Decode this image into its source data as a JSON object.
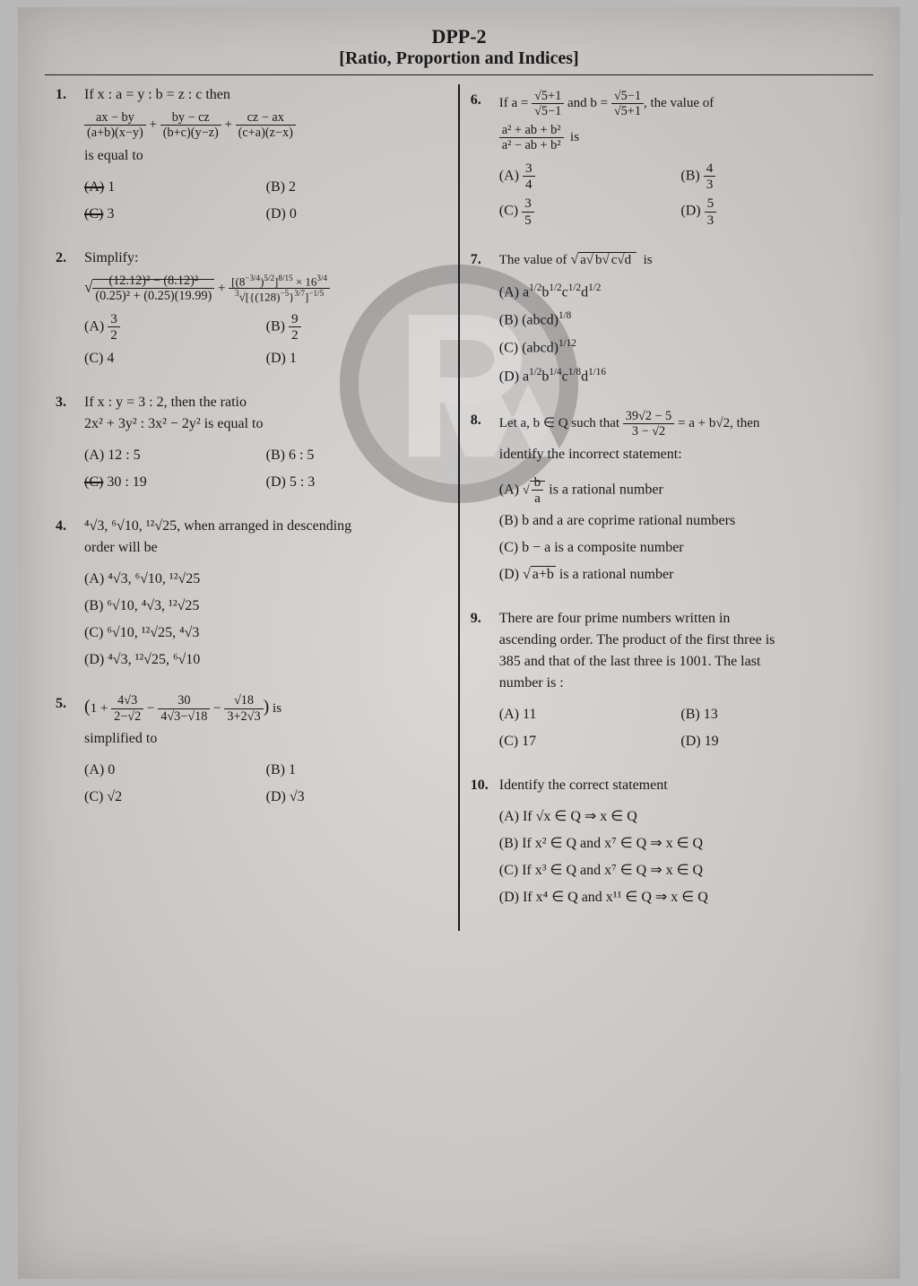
{
  "header": {
    "dpp": "DPP-2",
    "subtitle": "[Ratio, Proportion and Indices]"
  },
  "questions_left": [
    {
      "num": "1.",
      "text_lines": [
        "If x : a = y : b = z : c then"
      ],
      "formula_html": "<span class='frac'><span class='num'>ax − by</span><span class='den'>(a+b)(x−y)</span></span> + <span class='frac'><span class='num'>by − cz</span><span class='den'>(b+c)(y−z)</span></span> + <span class='frac'><span class='num'>cz − ax</span><span class='den'>(c+a)(z−x)</span></span>",
      "tail": "is equal to",
      "options": [
        {
          "label": "(A)",
          "text": "1",
          "struck": true
        },
        {
          "label": "(B)",
          "text": "2"
        },
        {
          "label": "(C)",
          "text": "3",
          "struck": true
        },
        {
          "label": "(D)",
          "text": "0"
        }
      ]
    },
    {
      "num": "2.",
      "text_lines": [
        "Simplify:"
      ],
      "formula_html": "<span style='font-size:17px'>√</span><span style='border-top:1px solid #1a1a1a; padding-top:1px'><span class='frac'><span class='num'>(12.12)² − (8.12)²</span><span class='den'>(0.25)² + (0.25)(19.99)</span></span></span> + <span class='frac' style='font-size:13px'><span class='num'>[(8<sup>−3/4</sup>)<sup>5/2</sup>]<sup>8/15</sup> × 16<sup>3/4</sup></span><span class='den'><sup>3</sup>√[{(128)<sup>−5</sup>}<sup>3/7</sup>]<sup>−1/5</sup></span></span>",
      "options": [
        {
          "label": "(A)",
          "html": "<span class='frac'><span class='num'>3</span><span class='den'>2</span></span>"
        },
        {
          "label": "(B)",
          "html": "<span class='frac'><span class='num'>9</span><span class='den'>2</span></span>"
        },
        {
          "label": "(C)",
          "text": "4"
        },
        {
          "label": "(D)",
          "text": "1"
        }
      ]
    },
    {
      "num": "3.",
      "text_lines": [
        "If x : y = 3 : 2, then the ratio",
        "2x² + 3y² : 3x² − 2y² is equal to"
      ],
      "options": [
        {
          "label": "(A)",
          "text": "12 : 5"
        },
        {
          "label": "(B)",
          "text": "6 : 5"
        },
        {
          "label": "(C)",
          "text": "30 : 19",
          "struck": true
        },
        {
          "label": "(D)",
          "text": "5 : 3"
        }
      ]
    },
    {
      "num": "4.",
      "text_lines": [
        "⁴√3, ⁶√10, ¹²√25, when arranged in descending",
        "order will be"
      ],
      "options_full": [
        {
          "label": "(A)",
          "text": "⁴√3, ⁶√10, ¹²√25"
        },
        {
          "label": "(B)",
          "text": "⁶√10, ⁴√3, ¹²√25"
        },
        {
          "label": "(C)",
          "text": "⁶√10, ¹²√25, ⁴√3"
        },
        {
          "label": "(D)",
          "text": "⁴√3, ¹²√25, ⁶√10"
        }
      ]
    },
    {
      "num": "5.",
      "formula_html": "<span style='font-size:20px'>(</span>1 + <span class='frac'><span class='num'>4√3</span><span class='den'>2−√2</span></span> − <span class='frac'><span class='num'>30</span><span class='den'>4√3−√18</span></span> − <span class='frac'><span class='num'>√18</span><span class='den'>3+2√3</span></span><span style='font-size:20px'>)</span> is",
      "tail": "simplified to",
      "options": [
        {
          "label": "(A)",
          "text": "0"
        },
        {
          "label": "(B)",
          "text": "1"
        },
        {
          "label": "(C)",
          "text": "√2"
        },
        {
          "label": "(D)",
          "text": "√3"
        }
      ]
    }
  ],
  "questions_right": [
    {
      "num": "6.",
      "formula_html": "If a = <span class='frac'><span class='num'>√5+1</span><span class='den'>√5−1</span></span> and b = <span class='frac'><span class='num'>√5−1</span><span class='den'>√5+1</span></span>, the value of",
      "formula2_html": "<span class='frac'><span class='num'>a² + ab + b²</span><span class='den'>a² − ab + b²</span></span> &nbsp;is",
      "options": [
        {
          "label": "(A)",
          "html": "<span class='frac'><span class='num'>3</span><span class='den'>4</span></span>"
        },
        {
          "label": "(B)",
          "html": "<span class='frac'><span class='num'>4</span><span class='den'>3</span></span>"
        },
        {
          "label": "(C)",
          "html": "<span class='frac'><span class='num'>3</span><span class='den'>5</span></span>"
        },
        {
          "label": "(D)",
          "html": "<span class='frac'><span class='num'>5</span><span class='den'>3</span></span>"
        }
      ]
    },
    {
      "num": "7.",
      "formula_html": "The value of <span style='font-size:16px'>√</span><span style='border-top:1px solid #1a1a1a;padding:0 2px;'>a√<span style='border-top:1px solid #1a1a1a;padding:0 2px;'>b√<span style='border-top:1px solid #1a1a1a;padding:0 2px;'>c√d</span></span></span> &nbsp;is",
      "options_full": [
        {
          "label": "(A)",
          "html": "a<sup>1/2</sup>b<sup>1/2</sup>c<sup>1/2</sup>d<sup>1/2</sup>"
        },
        {
          "label": "(B)",
          "html": "(abcd)<sup>1/8</sup>"
        },
        {
          "label": "(C)",
          "html": "(abcd)<sup>1/12</sup>"
        },
        {
          "label": "(D)",
          "html": "a<sup>1/2</sup>b<sup>1/4</sup>c<sup>1/8</sup>d<sup>1/16</sup>"
        }
      ]
    },
    {
      "num": "8.",
      "formula_html": "Let a, b ∈ Q such that <span class='frac'><span class='num'>39√2 − 5</span><span class='den'>3 − √2</span></span> = a + b√2, then",
      "tail": "identify the incorrect statement:",
      "options_full": [
        {
          "label": "(A)",
          "html": "<span style='font-size:14px'>√</span><span style='border-top:1px solid #1a1a1a;padding:0 2px;'><span class='frac'><span class='num'>b</span><span class='den'>a</span></span></span> is a rational number"
        },
        {
          "label": "(B)",
          "text": "b and a are coprime rational numbers"
        },
        {
          "label": "(C)",
          "text": "b − a is a composite number"
        },
        {
          "label": "(D)",
          "html": "√<span style='border-top:1px solid #1a1a1a;padding:0 2px;'>a+b</span> is a rational number"
        }
      ]
    },
    {
      "num": "9.",
      "text_lines": [
        "There are four prime numbers written in",
        "ascending order. The product of the first three is",
        "385 and that of the last three is 1001. The last",
        "number is :"
      ],
      "options": [
        {
          "label": "(A)",
          "text": "11"
        },
        {
          "label": "(B)",
          "text": "13"
        },
        {
          "label": "(C)",
          "text": "17"
        },
        {
          "label": "(D)",
          "text": "19"
        }
      ]
    },
    {
      "num": "10.",
      "text_lines": [
        "Identify the correct statement"
      ],
      "options_full": [
        {
          "label": "(A)",
          "html": "If √x ∈ Q ⇒ x ∈ Q"
        },
        {
          "label": "(B)",
          "html": "If x² ∈ Q and x⁷ ∈ Q ⇒ x ∈ Q"
        },
        {
          "label": "(C)",
          "html": "If x³ ∈ Q and x⁷ ∈ Q ⇒ x ∈ Q"
        },
        {
          "label": "(D)",
          "html": "If x⁴ ∈ Q and x¹¹ ∈ Q ⇒ x ∈ Q"
        }
      ]
    }
  ],
  "colors": {
    "page_bg": "#d4d0ce",
    "body_bg": "#b8b8b8",
    "text": "#1a1a1a",
    "watermark_outer": "#5a5a5a",
    "watermark_inner": "#e8e8e8"
  }
}
